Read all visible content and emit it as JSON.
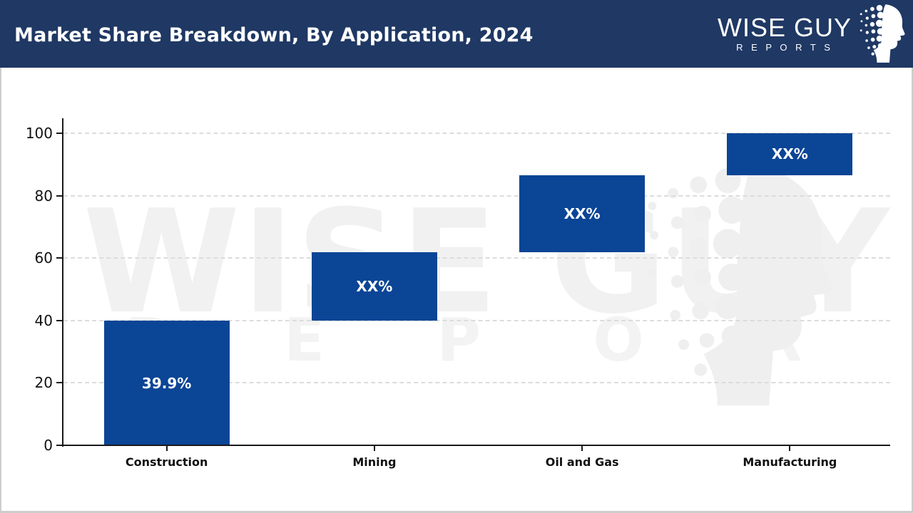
{
  "header": {
    "title": "Market Share Breakdown, By Application, 2024",
    "logo": {
      "name": "WISE GUY",
      "tagline": "R E P O R T S"
    }
  },
  "watermark": {
    "text": "WISE GUY",
    "tagline": "R E P O R T S"
  },
  "chart_data": {
    "type": "bar",
    "subtype": "floating-waterfall",
    "title": "Market Share Breakdown, By Application, 2024",
    "categories": [
      "Construction",
      "Mining",
      "Oil and Gas",
      "Manufacturing"
    ],
    "segments": [
      {
        "category": "Construction",
        "start": 0,
        "end": 39.9,
        "label": "39.9%"
      },
      {
        "category": "Mining",
        "start": 39.9,
        "end": 61.8,
        "label": "XX%"
      },
      {
        "category": "Oil and Gas",
        "start": 61.8,
        "end": 86.6,
        "label": "XX%"
      },
      {
        "category": "Manufacturing",
        "start": 86.6,
        "end": 100,
        "label": "XX%"
      }
    ],
    "yticks": [
      0,
      20,
      40,
      60,
      80,
      100
    ],
    "ylim": [
      0,
      105
    ],
    "xlabel": "",
    "ylabel": "",
    "grid": "horizontal-dashed",
    "legend": "none",
    "bar_color": "#0b4596",
    "bar_label_color": "#ffffff"
  },
  "colors": {
    "header_bg": "#1f3864",
    "bar": "#0b4596",
    "watermark": "#f1f1f1",
    "gridline": "#dcdcdc",
    "axis": "#1a1a1a",
    "page_border": "#cdcdcd"
  }
}
